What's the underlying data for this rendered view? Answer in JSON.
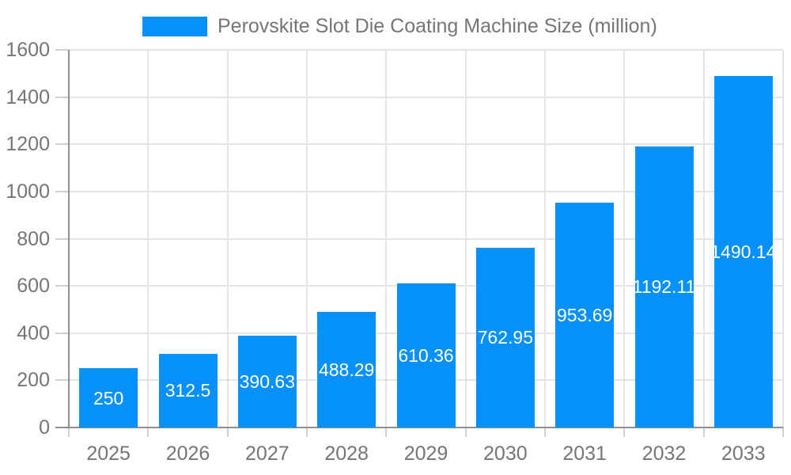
{
  "chart_data": {
    "type": "bar",
    "title": "Perovskite Slot Die Coating Machine Size (million)",
    "categories": [
      "2025",
      "2026",
      "2027",
      "2028",
      "2029",
      "2030",
      "2031",
      "2032",
      "2033"
    ],
    "values": [
      250,
      312.5,
      390.63,
      488.29,
      610.36,
      762.95,
      953.69,
      1192.11,
      1490.14
    ],
    "value_labels": [
      "250",
      "312.5",
      "390.63",
      "488.29",
      "610.36",
      "762.95",
      "953.69",
      "1192.11",
      "1490.14"
    ],
    "xlabel": "",
    "ylabel": "",
    "ylim": [
      0,
      1600
    ],
    "ytick_step": 200,
    "ytick_labels": [
      "0",
      "200",
      "400",
      "600",
      "800",
      "1000",
      "1200",
      "1400",
      "1600"
    ],
    "grid": true,
    "legend_position": "top",
    "colors": {
      "bar": "#0590FA",
      "bar_label": "#FFFFFF",
      "axis_text": "#757575",
      "grid_line": "#E4E4E4",
      "tick_line": "#CFCFCF",
      "axis_line": "#8F8F8F",
      "background": "#FFFFFF"
    }
  }
}
